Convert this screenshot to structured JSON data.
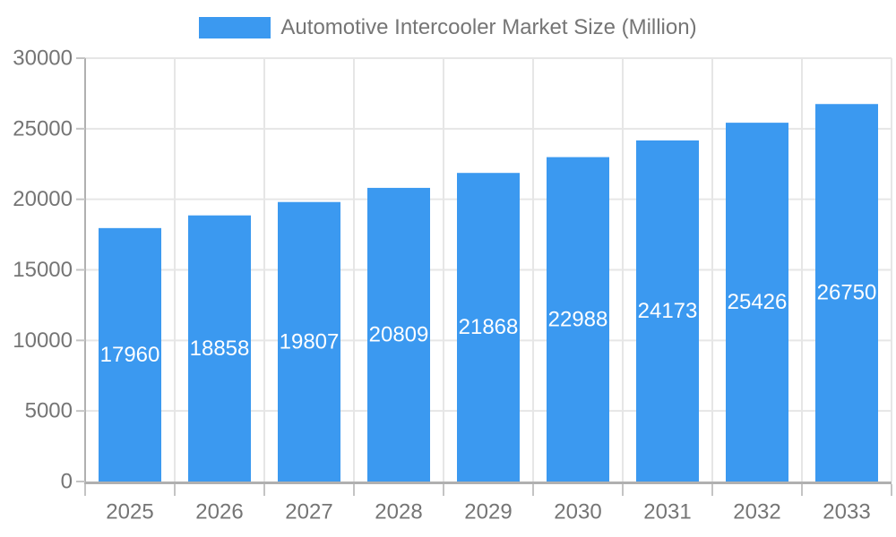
{
  "page": {
    "background_color": "#ffffff"
  },
  "chart_data": {
    "type": "bar",
    "title": "Automotive Intercooler Market Size (Million)",
    "series": [
      {
        "name": "Automotive Intercooler Market Size (Million)",
        "values": [
          17960,
          18858,
          19807,
          20809,
          21868,
          22988,
          24173,
          25426,
          26750
        ]
      }
    ],
    "categories": [
      "2025",
      "2026",
      "2027",
      "2028",
      "2029",
      "2030",
      "2031",
      "2032",
      "2033"
    ],
    "value_labels_shown": true,
    "xlabel": "",
    "ylabel": "",
    "ylim": [
      0,
      30000
    ],
    "yticks": [
      0,
      5000,
      10000,
      15000,
      20000,
      25000,
      30000
    ],
    "grid": true,
    "legend_position": "top",
    "colors": {
      "bar": "#3B99F0",
      "value_label": "#ffffff",
      "axis_text": "#757575",
      "legend_text": "#757575",
      "gridline": "#e6e6e6",
      "axis_line": "#b0b0b0",
      "tick_mark": "#c4c4c4",
      "background": "#ffffff"
    }
  }
}
